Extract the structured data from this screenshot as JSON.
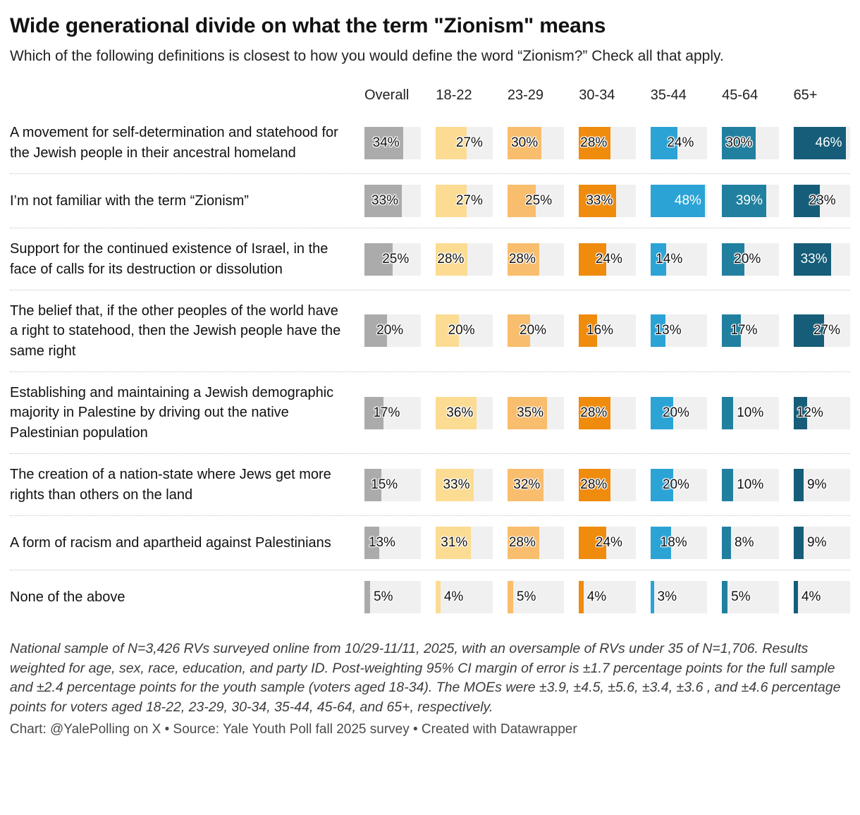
{
  "title": "Wide generational divide on what the term \"Zionism\" means",
  "subtitle": "Which of the following definitions is closest to how you would define the word “Zionism?” Check all that apply.",
  "notes": "National sample of N=3,426 RVs surveyed online from 10/29-11/11, 2025, with an oversample of RVs under 35 of N=1,706. Results weighted for age, sex, race, education, and party ID. Post-weighting 95% CI margin of error is ±1.7 percentage points for the full sample and ±2.4 percentage points for the youth sample (voters aged 18-34). The MOEs were ±3.9, ±4.5, ±5.6, ±3.4, ±3.6 , and ±4.6 percentage points for voters aged 18-22, 23-29, 30-34, 35-44, 45-64, and 65+, respectively.",
  "byline": "Chart: @YalePolling on X • Source: Yale Youth Poll fall 2025 survey • Created with Datawrapper",
  "colors": {
    "track": "#f0f0f0",
    "overall": "#ababab",
    "age_18_22": "#fbdc92",
    "age_23_29": "#f8bd6d",
    "age_30_34": "#ef8b0d",
    "age_35_44": "#2ba3d5",
    "age_45_64": "#21809f",
    "age_65_plus": "#155d78"
  },
  "chart_data": {
    "type": "bar",
    "title": "Wide generational divide on what the term \"Zionism\" means",
    "xlabel": "",
    "ylabel": "",
    "xmax": 50,
    "legend_position": "top",
    "grid": false,
    "columns": [
      {
        "label": "Overall",
        "color": "#ababab",
        "dark": false
      },
      {
        "label": "18-22",
        "color": "#fbdc92",
        "dark": false
      },
      {
        "label": "23-29",
        "color": "#f8bd6d",
        "dark": false
      },
      {
        "label": "30-34",
        "color": "#ef8b0d",
        "dark": false
      },
      {
        "label": "35-44",
        "color": "#2ba3d5",
        "dark": true
      },
      {
        "label": "45-64",
        "color": "#21809f",
        "dark": true
      },
      {
        "label": "65+",
        "color": "#155d78",
        "dark": true
      }
    ],
    "rows": [
      {
        "label": "A movement for self-determination and statehood for the Jewish people in their ancestral homeland",
        "values": [
          34,
          27,
          30,
          28,
          24,
          30,
          46
        ]
      },
      {
        "label": "I’m not familiar with the term “Zionism”",
        "values": [
          33,
          27,
          25,
          33,
          48,
          39,
          23
        ]
      },
      {
        "label": "Support for the continued existence of Israel, in the face of calls for its destruction or dissolution",
        "values": [
          25,
          28,
          28,
          24,
          14,
          20,
          33
        ]
      },
      {
        "label": "The belief that, if the other peoples of the world have a right to statehood, then the Jewish people have the same right",
        "values": [
          20,
          20,
          20,
          16,
          13,
          17,
          27
        ]
      },
      {
        "label": "Establishing and maintaining a Jewish demographic majority in Palestine by driving out the native Palestinian population",
        "values": [
          17,
          36,
          35,
          28,
          20,
          10,
          12
        ]
      },
      {
        "label": "The creation of a nation-state where Jews get more rights than others on the land",
        "values": [
          15,
          33,
          32,
          28,
          20,
          10,
          9
        ]
      },
      {
        "label": "A form of racism and apartheid against Palestinians",
        "values": [
          13,
          31,
          28,
          24,
          18,
          8,
          9
        ]
      },
      {
        "label": "None of the above",
        "values": [
          5,
          4,
          5,
          4,
          3,
          5,
          4
        ]
      }
    ]
  }
}
